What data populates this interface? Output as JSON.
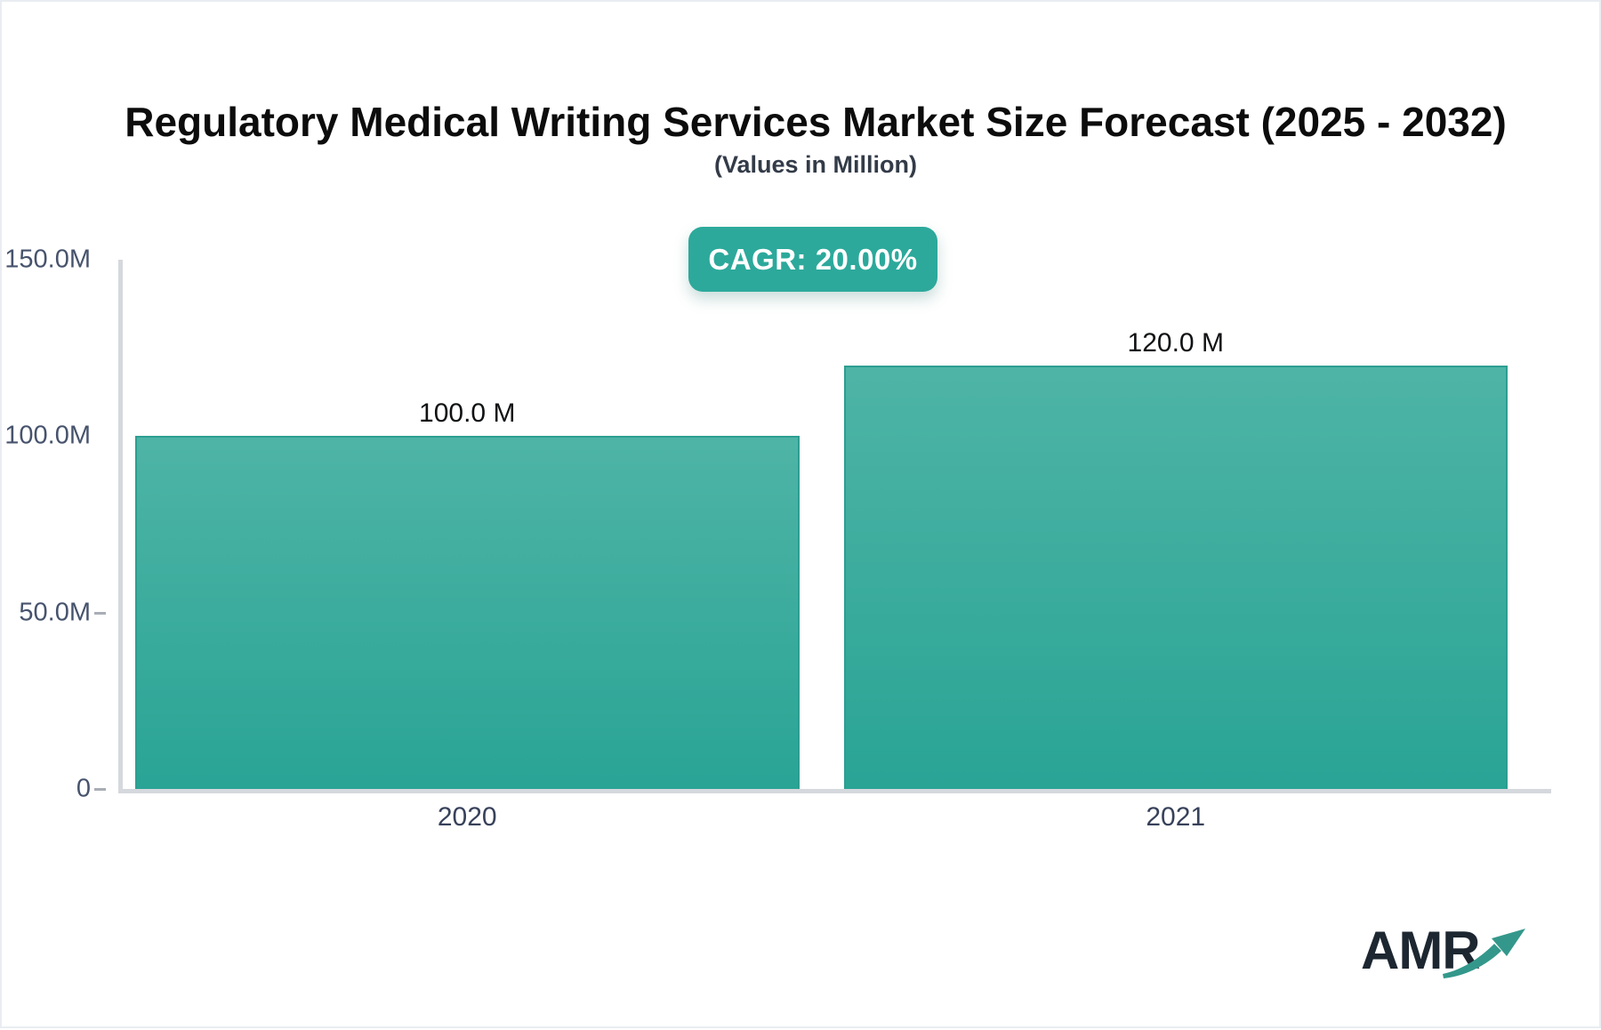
{
  "header": {
    "title": "Regulatory Medical Writing Services Market Size Forecast (2025 - 2032)",
    "subtitle": "(Values in Million)"
  },
  "badge": {
    "label": "CAGR: 20.00%",
    "bg_color": "#2ca99b",
    "text_color": "#ffffff"
  },
  "chart_data": {
    "type": "bar",
    "title": "Regulatory Medical Writing Services Market Size Forecast (2025 - 2032)",
    "subtitle": "(Values in Million)",
    "unit": "Million",
    "cagr": "20.00%",
    "categories": [
      "2020",
      "2021"
    ],
    "values": [
      100.0,
      120.0
    ],
    "value_labels": [
      "100.0 M",
      "120.0 M"
    ],
    "ylim": [
      0,
      150
    ],
    "yticks": [
      150,
      100,
      50,
      0
    ],
    "ytick_labels": [
      "150.0M",
      "100.0M",
      "50.0M",
      "0"
    ],
    "ytick_dash": [
      false,
      false,
      true,
      true
    ],
    "grid": false,
    "legend": "none",
    "bar_color_top": "#4eb4a6",
    "bar_color_bottom": "#29a495",
    "bar_border_color": "#2d9e91"
  },
  "logo": {
    "text": "AMR",
    "text_color": "#1d2731",
    "arrow_color": "#33988b"
  }
}
